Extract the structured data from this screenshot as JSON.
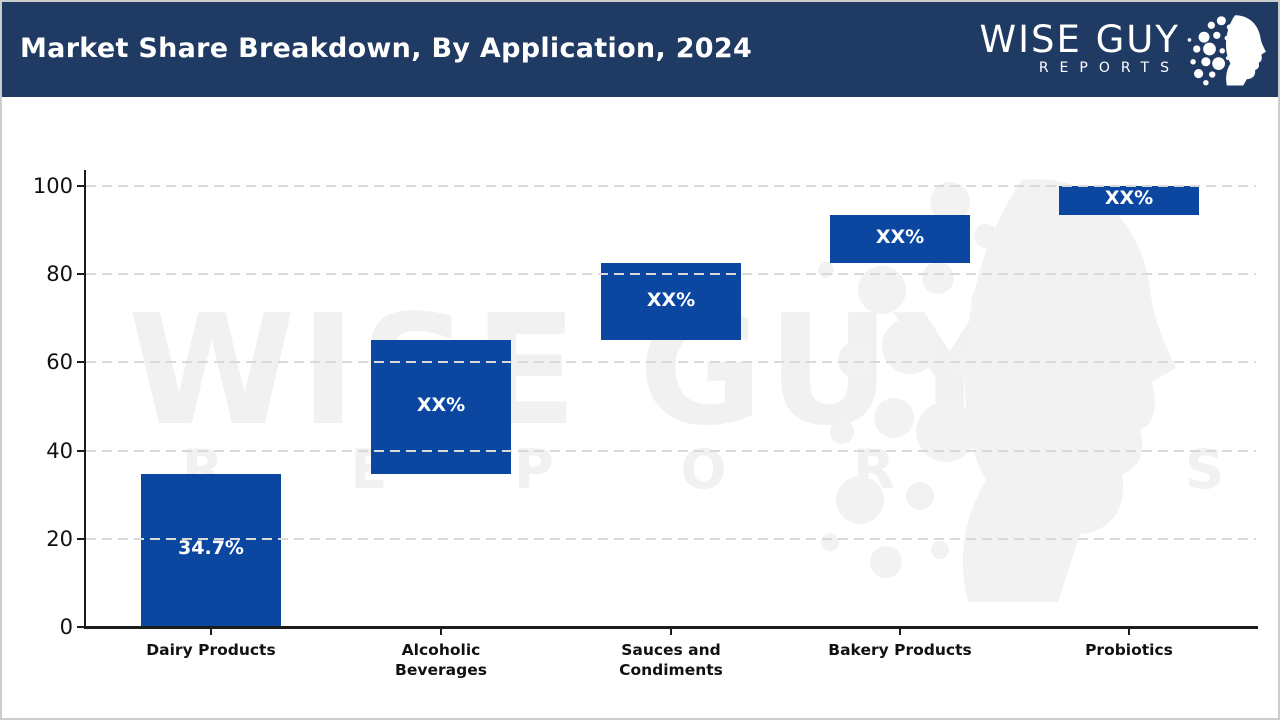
{
  "header": {
    "title": "Market Share Breakdown, By Application, 2024",
    "bg_color": "#1f3a63",
    "logo": {
      "name": "WISE GUY",
      "tagline": "REPORTS"
    }
  },
  "colors": {
    "header_bg": "#1f3a63",
    "bar_fill": "#0b47a1",
    "bar_label_text": "#ffffff",
    "axis": "#1c1c1c",
    "gridline": "#d9d9d9",
    "watermark": "#f1f1f1",
    "page_border": "#cdcdcd"
  },
  "watermark": {
    "line1": "WISE GUY",
    "line2": "R E P O R T S",
    "head_graphic": "dotted-head-profile"
  },
  "chart_data": {
    "type": "bar",
    "subtype": "waterfall",
    "title": "Market Share Breakdown, By Application, 2024",
    "categories": [
      "Dairy Products",
      "Alcoholic\nBeverages",
      "Sauces and\nCondiments",
      "Bakery Products",
      "Probiotics"
    ],
    "segments": [
      {
        "category": "Dairy Products",
        "start": 0,
        "end": 34.7,
        "label": "34.7%"
      },
      {
        "category": "Alcoholic Beverages",
        "start": 34.7,
        "end": 65.0,
        "label": "XX%"
      },
      {
        "category": "Sauces and Condiments",
        "start": 65.0,
        "end": 82.5,
        "label": "XX%"
      },
      {
        "category": "Bakery Products",
        "start": 82.5,
        "end": 93.5,
        "label": "XX%"
      },
      {
        "category": "Probiotics",
        "start": 93.5,
        "end": 100.0,
        "label": "XX%"
      }
    ],
    "xlabel": "",
    "ylabel": "",
    "ylim": [
      0,
      100
    ],
    "yticks": [
      0,
      20,
      40,
      60,
      80,
      100
    ],
    "grid": "horizontal dashed, drawn over bars",
    "legend": "none",
    "bar_value_labels_inside": true
  }
}
